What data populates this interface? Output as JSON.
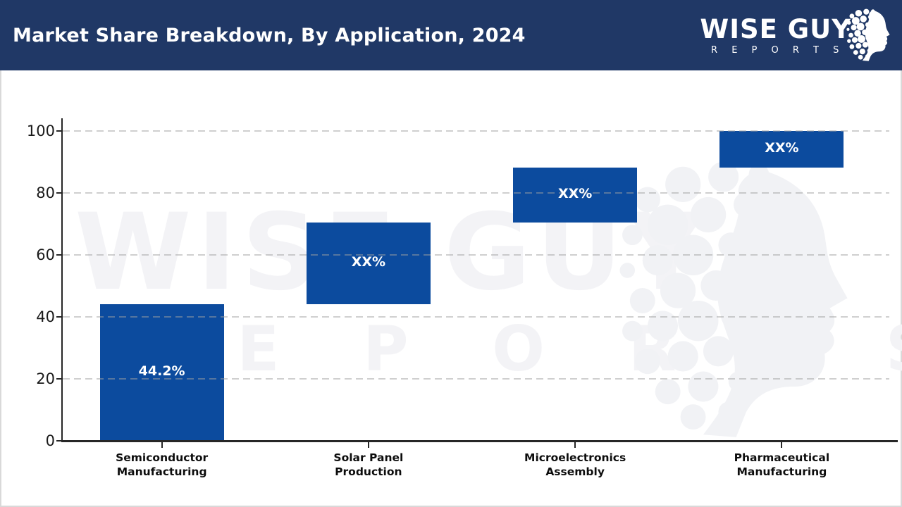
{
  "header": {
    "title": "Market Share Breakdown, By Application, 2024",
    "logo": {
      "line1": "WISE GUY",
      "line2": "R E P O R T S",
      "head_icon": "dotted-head-profile-icon"
    }
  },
  "watermark": {
    "line1": "WISE GUY",
    "line2": "R E P O R T S",
    "head_icon": "dotted-head-profile-icon"
  },
  "colors": {
    "header_bg": "#203866",
    "bar_blue": "#0c4b9e",
    "bar_label": "#ffffff",
    "axis": "#262626",
    "gridline": "#d8d8d8",
    "watermark": "#f3f3f6",
    "page_border": "#d9d9d9"
  },
  "chart_data": {
    "type": "bar",
    "subtype": "waterfall",
    "title": "Market Share Breakdown, By Application, 2024",
    "xlabel": "",
    "ylabel": "",
    "ylim": [
      0,
      105
    ],
    "y_ticks": [
      0,
      20,
      40,
      60,
      80,
      100
    ],
    "grid": "horizontal-dashed",
    "legend": "none",
    "categories": [
      "Semiconductor\nManufacturing",
      "Solar Panel\nProduction",
      "Microelectronics\nAssembly",
      "Pharmaceutical\nManufacturing"
    ],
    "segments": [
      {
        "category": "Semiconductor\nManufacturing",
        "start": 0,
        "end": 44.2,
        "value": 44.2,
        "label": "44.2%"
      },
      {
        "category": "Solar Panel\nProduction",
        "start": 44.2,
        "end": 70.5,
        "value": 26.3,
        "label": "XX%"
      },
      {
        "category": "Microelectronics\nAssembly",
        "start": 70.5,
        "end": 88.2,
        "value": 17.7,
        "label": "XX%"
      },
      {
        "category": "Pharmaceutical\nManufacturing",
        "start": 88.2,
        "end": 100,
        "value": 11.8,
        "label": "XX%"
      }
    ]
  }
}
